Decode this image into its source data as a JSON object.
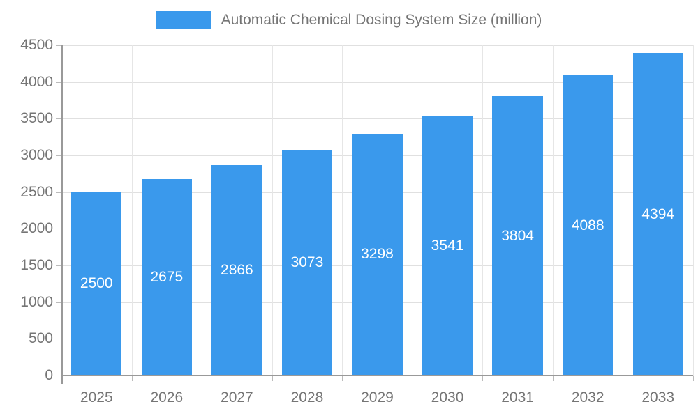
{
  "legend": {
    "label": "Automatic Chemical Dosing System Size (million)"
  },
  "colors": {
    "bar": "#3A99EC",
    "hgrid": "#E0E0E0",
    "vgrid": "#E6E6E6",
    "tick": "#BBBBBB",
    "axis": "#999999",
    "text": "#757575",
    "bar_label": "#FFFFFF"
  },
  "chart_data": {
    "type": "bar",
    "title": "Automatic Chemical Dosing System Size (million)",
    "categories": [
      "2025",
      "2026",
      "2027",
      "2028",
      "2029",
      "2030",
      "2031",
      "2032",
      "2033"
    ],
    "values": [
      2500,
      2675,
      2866,
      3073,
      3298,
      3541,
      3804,
      4088,
      4394
    ],
    "series_name": "Automatic Chemical Dosing System Size (million)",
    "xlabel": "",
    "ylabel": "",
    "ylim": [
      0,
      4500
    ],
    "ytick_step": 500,
    "ytick_labels": [
      "0",
      "500",
      "1000",
      "1500",
      "2000",
      "2500",
      "3000",
      "3500",
      "4000",
      "4500"
    ],
    "grid": true,
    "legend_position": "top-center",
    "value_labels": "inside-center",
    "bar_width_ratio": 0.72
  }
}
